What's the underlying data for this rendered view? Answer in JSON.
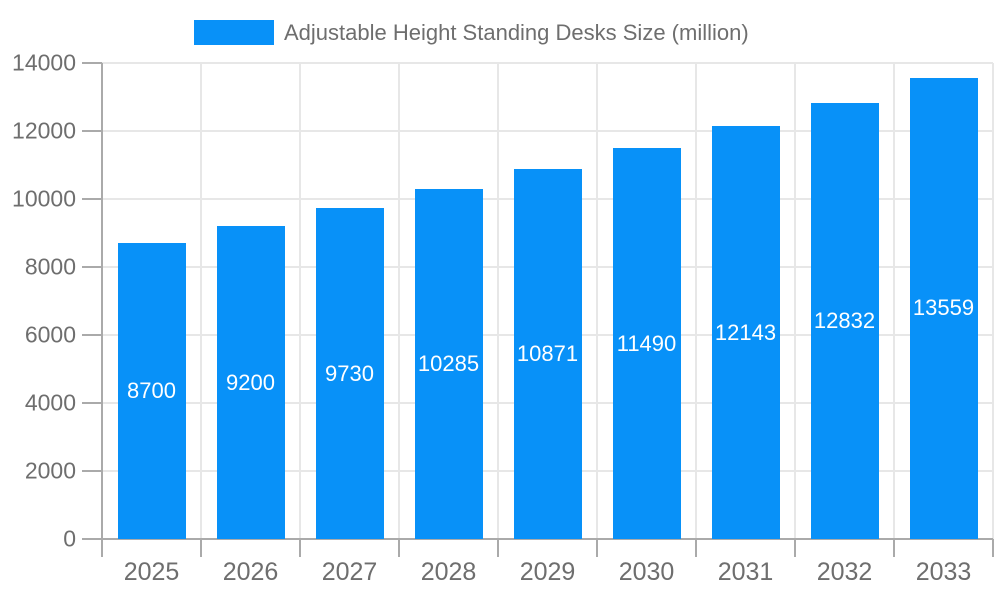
{
  "chart_data": {
    "type": "bar",
    "title": "Adjustable Height Standing Desks Size (million)",
    "series_name": "Adjustable Height Standing Desks Size (million)",
    "categories": [
      "2025",
      "2026",
      "2027",
      "2028",
      "2029",
      "2030",
      "2031",
      "2032",
      "2033"
    ],
    "values": [
      8700,
      9200,
      9730,
      10285,
      10871,
      11490,
      12143,
      12832,
      13559
    ],
    "xlabel": "",
    "ylabel": "",
    "ylim": [
      0,
      14000
    ],
    "yticks": [
      0,
      2000,
      4000,
      6000,
      8000,
      10000,
      12000,
      14000
    ],
    "grid": true,
    "legend_position": "top",
    "colors": {
      "bar": "#0891F8",
      "value_label": "#FFFFFF",
      "axis": "#AAAAAA",
      "gridline": "#E7E7E7",
      "tick_label": "#6E6E6E",
      "legend_text": "#6E6E6E"
    }
  }
}
